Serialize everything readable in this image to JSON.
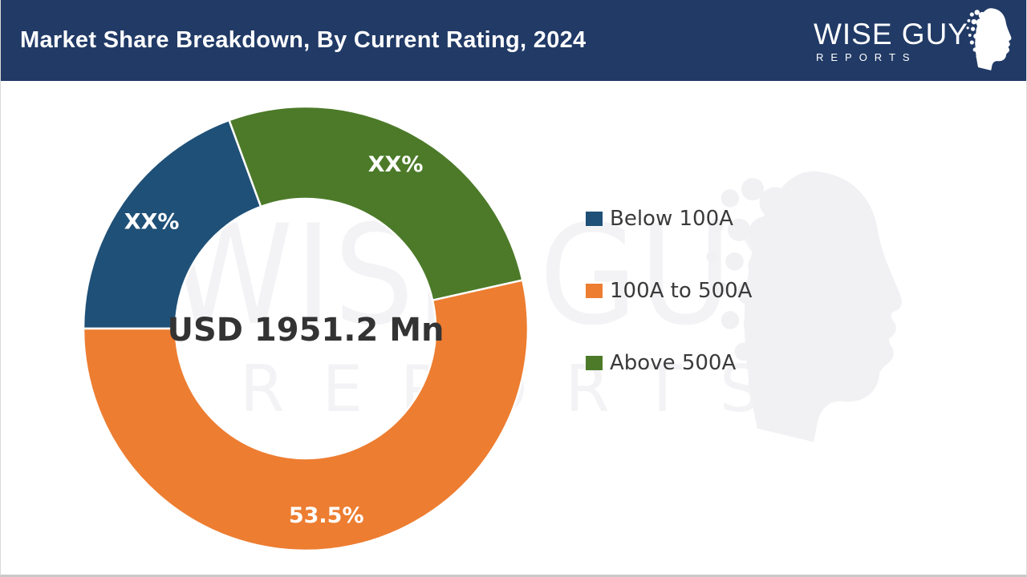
{
  "header": {
    "title": "Market Share Breakdown, By Current Rating, 2024",
    "background_color": "#213A66",
    "logo": {
      "name": "WISE GUY",
      "subtext": "REPORTS"
    }
  },
  "chart_data": {
    "type": "pie",
    "subtype": "donut",
    "title": "Market Share Breakdown, By Current Rating, 2024",
    "center_label": "USD 1951.2 Mn",
    "start_angle_deg": 180,
    "direction": "clockwise",
    "legend_position": "right",
    "segments": [
      {
        "label": "Below 100A",
        "value": 19.4,
        "display": "XX%",
        "color": "#1F5077"
      },
      {
        "label": "Above 500A",
        "value": 27.1,
        "display": "XX%",
        "color": "#4C7A29"
      },
      {
        "label": "100A to 500A",
        "value": 53.5,
        "display": "53.5%",
        "color": "#ED7D31"
      }
    ]
  },
  "legend": {
    "items": [
      {
        "label": "Below 100A",
        "color": "#1F5077"
      },
      {
        "label": "100A to 500A",
        "color": "#ED7D31"
      },
      {
        "label": "Above 500A",
        "color": "#4C7A29"
      }
    ]
  },
  "watermark": {
    "line1": "WISE GUY",
    "line2": "REPORTS"
  }
}
